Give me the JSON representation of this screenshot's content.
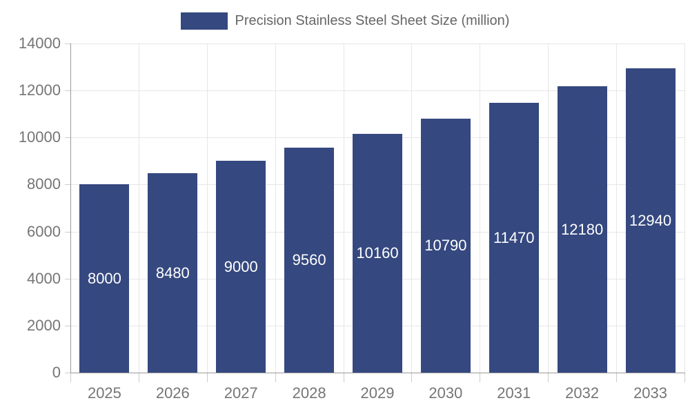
{
  "chart_data": {
    "type": "bar",
    "title": "",
    "categories": [
      "2025",
      "2026",
      "2027",
      "2028",
      "2029",
      "2030",
      "2031",
      "2032",
      "2033"
    ],
    "series": [
      {
        "name": "Precision Stainless Steel Sheet Size (million)",
        "values": [
          8000,
          8480,
          9000,
          9560,
          10160,
          10790,
          11470,
          12180,
          12940
        ]
      }
    ],
    "xlabel": "",
    "ylabel": "",
    "ylim": [
      0,
      14000
    ],
    "ytick_step": 2000,
    "ytick_labels": [
      "0",
      "2000",
      "4000",
      "6000",
      "8000",
      "10000",
      "12000",
      "14000"
    ],
    "grid": "horizontal and vertical light gridlines",
    "legend_position": "top-center",
    "data_labels_position": "inside-center",
    "colors": {
      "bar": "#35487F",
      "axis_text": "#757575",
      "legend_text": "#666666",
      "gridline": "#E6E6E6",
      "axis_line": "#999999",
      "tick": "#CCCCCC",
      "data_label": "#FFFFFF",
      "background": "#FFFFFF"
    }
  }
}
